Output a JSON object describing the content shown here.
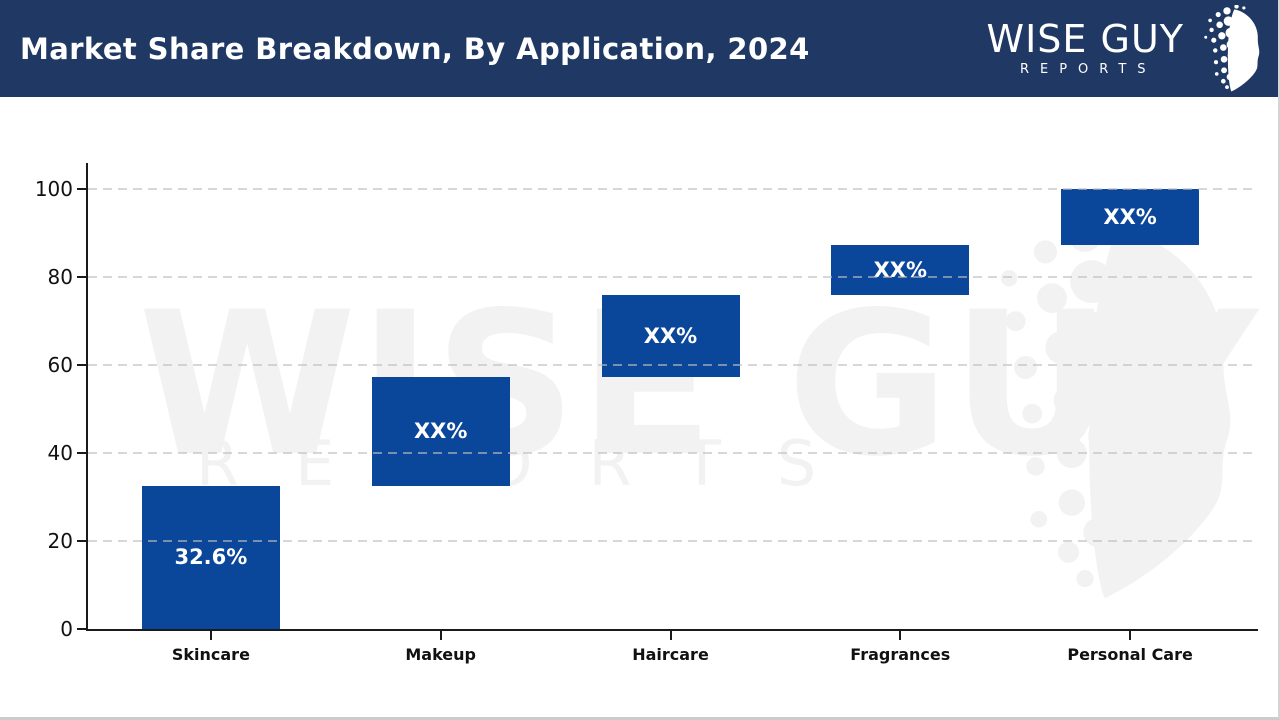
{
  "header": {
    "title": "Market Share Breakdown, By Application, 2024",
    "bg_color": "#1f3864",
    "logo": {
      "wordmark": "WISE GUY",
      "subtext": "REPORTS"
    }
  },
  "watermark": {
    "wordmark": "WISE GUY",
    "subtext": "REPORTS"
  },
  "chart_data": {
    "type": "bar",
    "subtype": "waterfall",
    "title": "Market Share Breakdown, By Application, 2024",
    "categories": [
      "Skincare",
      "Makeup",
      "Haircare",
      "Fragrances",
      "Personal Care"
    ],
    "segments": [
      {
        "category": "Skincare",
        "start": 0,
        "end": 32.6,
        "value": 32.6,
        "label": "32.6%"
      },
      {
        "category": "Makeup",
        "start": 32.6,
        "end": 57.2,
        "value": 24.6,
        "label": "XX%"
      },
      {
        "category": "Haircare",
        "start": 57.2,
        "end": 75.9,
        "value": 18.7,
        "label": "XX%"
      },
      {
        "category": "Fragrances",
        "start": 75.9,
        "end": 87.2,
        "value": 11.3,
        "label": "XX%"
      },
      {
        "category": "Personal Care",
        "start": 87.2,
        "end": 100,
        "value": 12.8,
        "label": "XX%"
      }
    ],
    "xlabel": "",
    "ylabel": "",
    "ylim": [
      0,
      100
    ],
    "yticks": [
      0,
      20,
      40,
      60,
      80,
      100
    ],
    "grid": "horizontal-dashed",
    "legend": "none",
    "bar_color": "#0a4699",
    "bar_label_color": "#ffffff",
    "axis_color": "#1a1a1a"
  }
}
